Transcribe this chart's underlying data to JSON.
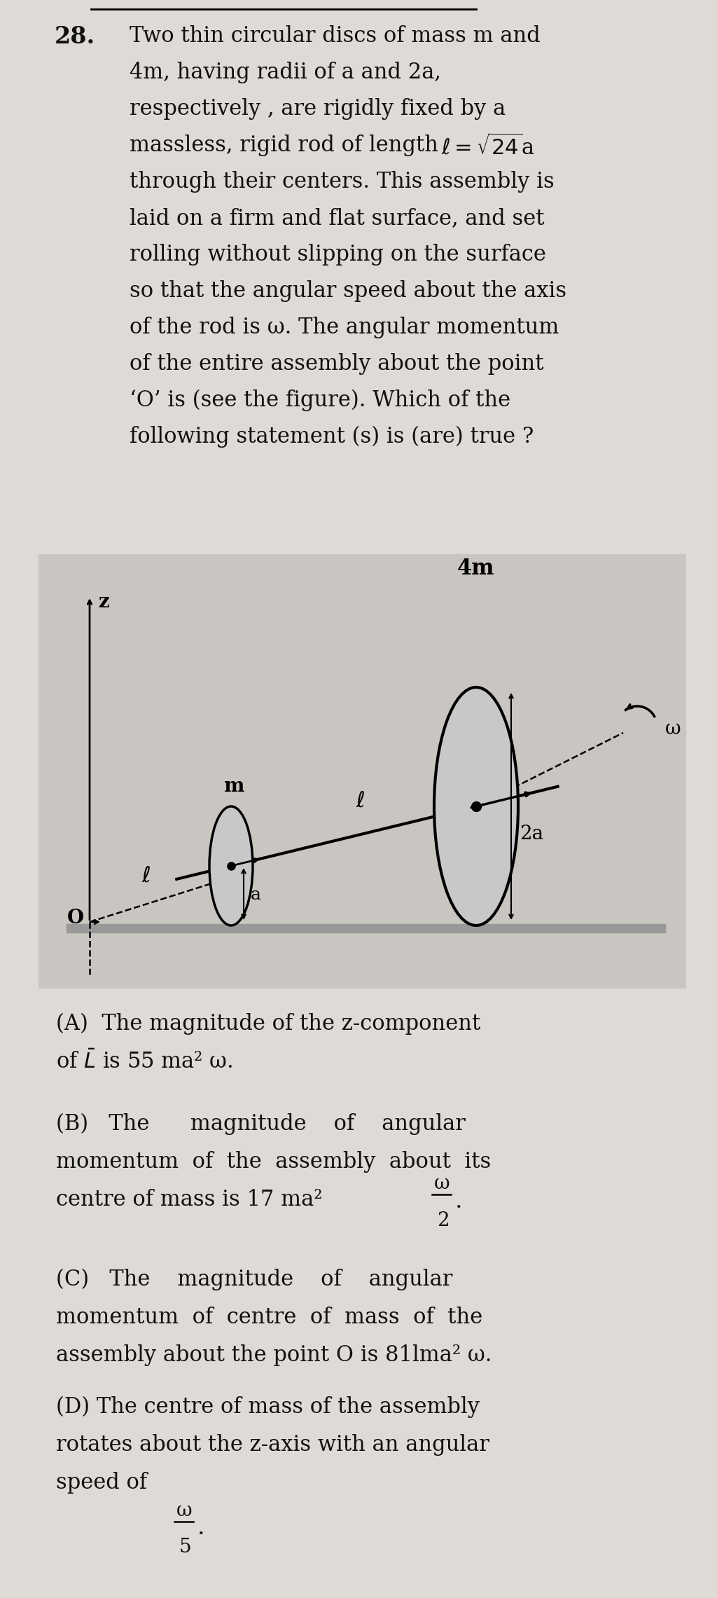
{
  "page_bg": "#dedad5",
  "fig_bg": "#c9c5c0",
  "text_color": "#111111",
  "q_num": "28.",
  "q_line1": "Two thin circular discs of mass m and",
  "q_line2": "4m, having radii of a and 2a,",
  "q_line3": "respectively , are rigidly fixed by a",
  "q_line4": "massless, rigid rod of length",
  "q_line5": "through their centers. This assembly is",
  "q_line6": "laid on a firm and flat surface, and set",
  "q_line7": "rolling without slipping on the surface",
  "q_line8": "so that the angular speed about the axis",
  "q_line9": "of the rod is ω. The angular momentum",
  "q_line10": "of the entire assembly about the point",
  "q_line11": "‘O’ is (see the figure). Which of the",
  "q_line12": "following statement (s) is (are) true ?",
  "optA_line1": "(A)  The magnitude of the z-component",
  "optA_line2": "of Ł is 55 ma² ω.",
  "optB_line1": "(B)   The      magnitude    of    angular",
  "optB_line2": "momentum  of  the  assembly  about  its",
  "optB_line3": "centre of mass is 17 ma²",
  "optB_frac_top": "ω",
  "optB_frac_bot": "2",
  "optC_line1": "(C)   The    magnitude    of    angular",
  "optC_line2": "momentum  of  centre  of  mass  of  the",
  "optC_line3": "assembly about the point O is 81lma² ω.",
  "optD_line1": "(D) The centre of mass of the assembly",
  "optD_line2": "rotates about the z-axis with an angular",
  "optD_line3": "speed of",
  "optD_frac_top": "ω",
  "optD_frac_bot": "5"
}
